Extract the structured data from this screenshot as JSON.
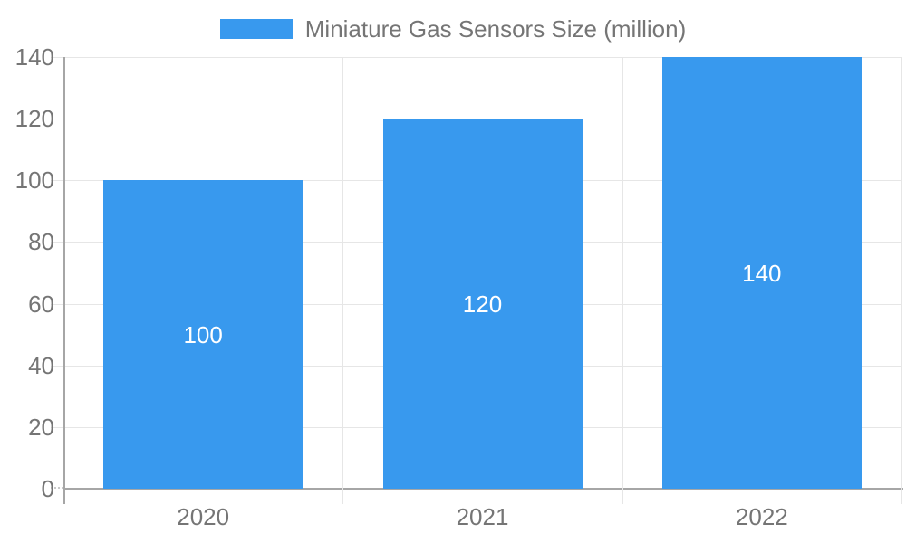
{
  "chart_data": {
    "type": "bar",
    "title": "Miniature Gas Sensors Size (million)",
    "legend_position": "top",
    "categories": [
      "2020",
      "2021",
      "2022"
    ],
    "series": [
      {
        "name": "Miniature Gas Sensors Size (million)",
        "values": [
          100,
          120,
          140
        ]
      }
    ],
    "bar_value_labels": [
      "100",
      "120",
      "140"
    ],
    "xlabel": "",
    "ylabel": "",
    "ylim": [
      0,
      140
    ],
    "y_ticks": [
      0,
      20,
      40,
      60,
      80,
      100,
      120,
      140
    ],
    "grid": true,
    "colors": {
      "bar": "#3899ee",
      "bar_label_text": "#ffffff",
      "axis_text": "#757575",
      "gridline": "#e6e6e6",
      "axis_line": "#a6a6a6",
      "zero_tick": "#c9c9c9",
      "background": "#ffffff"
    }
  }
}
